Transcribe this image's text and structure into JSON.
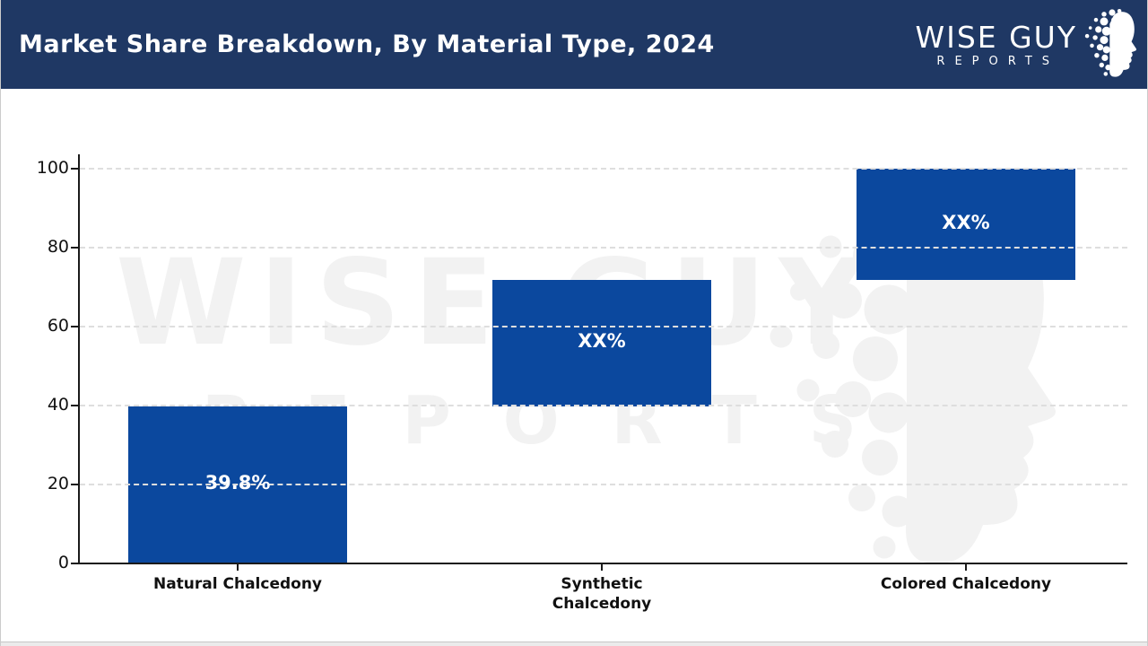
{
  "header": {
    "title": "Market Share Breakdown, By Material Type, 2024",
    "bg_color": "#1f3864",
    "logo": {
      "line1": "WISE GUY",
      "line2": "REPORTS"
    }
  },
  "watermark": {
    "line1": "WISE GUY",
    "line2": "REPORTS"
  },
  "chart_data": {
    "type": "bar",
    "subtype": "waterfall",
    "title": "Market Share Breakdown, By Material Type, 2024",
    "categories": [
      "Natural Chalcedony",
      "Synthetic\nChalcedony",
      "Colored Chalcedony"
    ],
    "segments": [
      {
        "category": "Natural Chalcedony",
        "start": 0,
        "end": 39.8,
        "value": 39.8,
        "label": "39.8%"
      },
      {
        "category": "Synthetic Chalcedony",
        "start": 39.8,
        "end": 71.8,
        "value": 32.0,
        "label": "XX%"
      },
      {
        "category": "Colored Chalcedony",
        "start": 71.8,
        "end": 100,
        "value": 28.2,
        "label": "XX%"
      }
    ],
    "ylim": [
      0,
      100
    ],
    "yticks": [
      0,
      20,
      40,
      60,
      80,
      100
    ],
    "xlabel": "",
    "ylabel": "",
    "grid": "horizontal-dashed",
    "legend": "none",
    "bar_color": "#0b489e",
    "bar_label_color": "#ffffff"
  }
}
